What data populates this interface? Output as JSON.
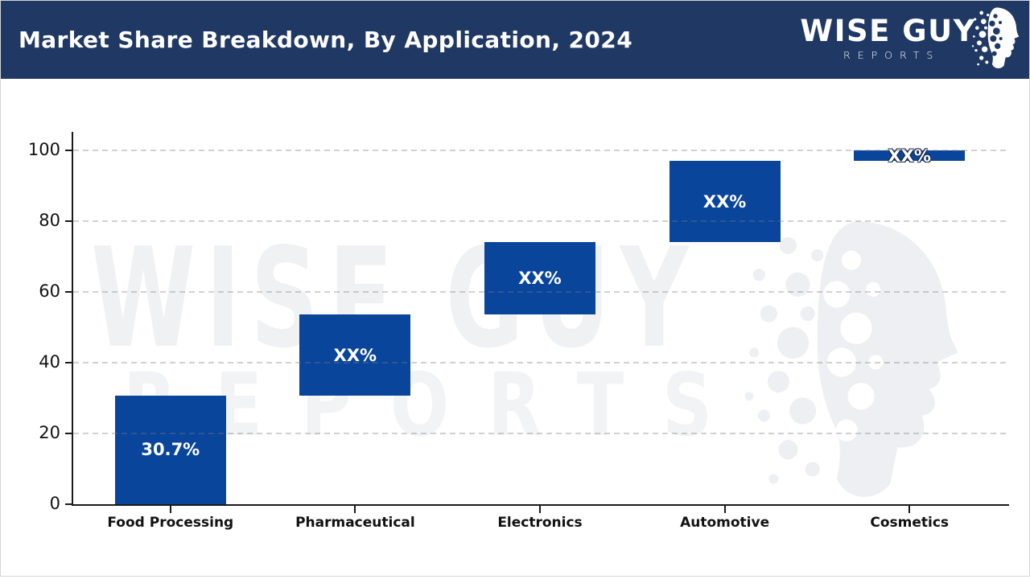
{
  "header": {
    "title": "Market Share Breakdown, By Application, 2024",
    "background_color": "#1F3864",
    "logo": {
      "line1": "WISE GUY",
      "line2": "REPORTS"
    }
  },
  "watermark": {
    "line1": "WISE GUY",
    "line2": "REPORTS"
  },
  "chart_data": {
    "type": "bar",
    "subtype": "waterfall",
    "title": "Market Share Breakdown, By Application, 2024",
    "categories": [
      "Food Processing",
      "Pharmaceutical",
      "Electronics",
      "Automotive",
      "Cosmetics"
    ],
    "segments": [
      {
        "category": "Food Processing",
        "start": 0,
        "end": 30.7,
        "label": "30.7%"
      },
      {
        "category": "Pharmaceutical",
        "start": 30.7,
        "end": 53.6,
        "label": "XX%"
      },
      {
        "category": "Electronics",
        "start": 53.6,
        "end": 74.1,
        "label": "XX%"
      },
      {
        "category": "Automotive",
        "start": 74.1,
        "end": 97.0,
        "label": "XX%"
      },
      {
        "category": "Cosmetics",
        "start": 97.0,
        "end": 100.0,
        "label": "XX%"
      }
    ],
    "xlabel": "",
    "ylabel": "",
    "ylim": [
      0,
      105
    ],
    "yticks": [
      0,
      20,
      40,
      60,
      80,
      100
    ],
    "grid": "horizontal-dashed",
    "legend": "none",
    "bar_color": "#0A459C",
    "value_label_color": "#ffffff",
    "axis_color": "#1a1a1a",
    "watermark_text": "WISE GUY REPORTS"
  }
}
